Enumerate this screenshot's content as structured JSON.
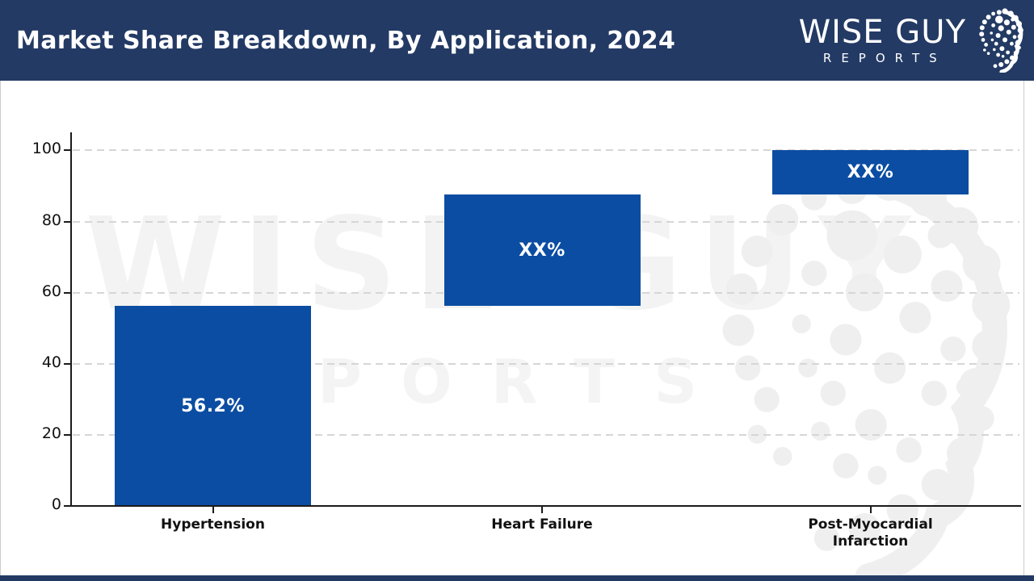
{
  "header": {
    "title": "Market Share Breakdown, By Application, 2024",
    "logo": {
      "name": "WISE GUY",
      "sub": "REPORTS"
    }
  },
  "watermark": {
    "line1": "WISE GUY",
    "line2": "REPORTS"
  },
  "chart_data": {
    "type": "bar",
    "variant": "floating-waterfall",
    "title": "Market Share Breakdown, By Application, 2024",
    "categories": [
      "Hypertension",
      "Heart Failure",
      "Post-Myocardial Infarction"
    ],
    "segments": [
      {
        "category": "Hypertension",
        "start": 0,
        "end": 56.2,
        "label": "56.2%"
      },
      {
        "category": "Heart Failure",
        "start": 56.2,
        "end": 87.5,
        "label": "XX%"
      },
      {
        "category": "Post-Myocardial Infarction",
        "start": 87.5,
        "end": 100,
        "label": "XX%"
      }
    ],
    "yticks": [
      0,
      20,
      40,
      60,
      80,
      100
    ],
    "ylim": [
      0,
      105
    ],
    "xlabel": "",
    "ylabel": "",
    "legend": "none",
    "grid": "dashed-horizontal",
    "bar_color": "#0b4da2",
    "bar_label_color": "#ffffff"
  },
  "colors": {
    "header_bg": "#233a64",
    "footer_bg": "#233a64",
    "bar": "#0b4da2",
    "axis": "#1a1a1a",
    "gridline": "#d6d6d6",
    "watermark": "#f3f3f3"
  }
}
